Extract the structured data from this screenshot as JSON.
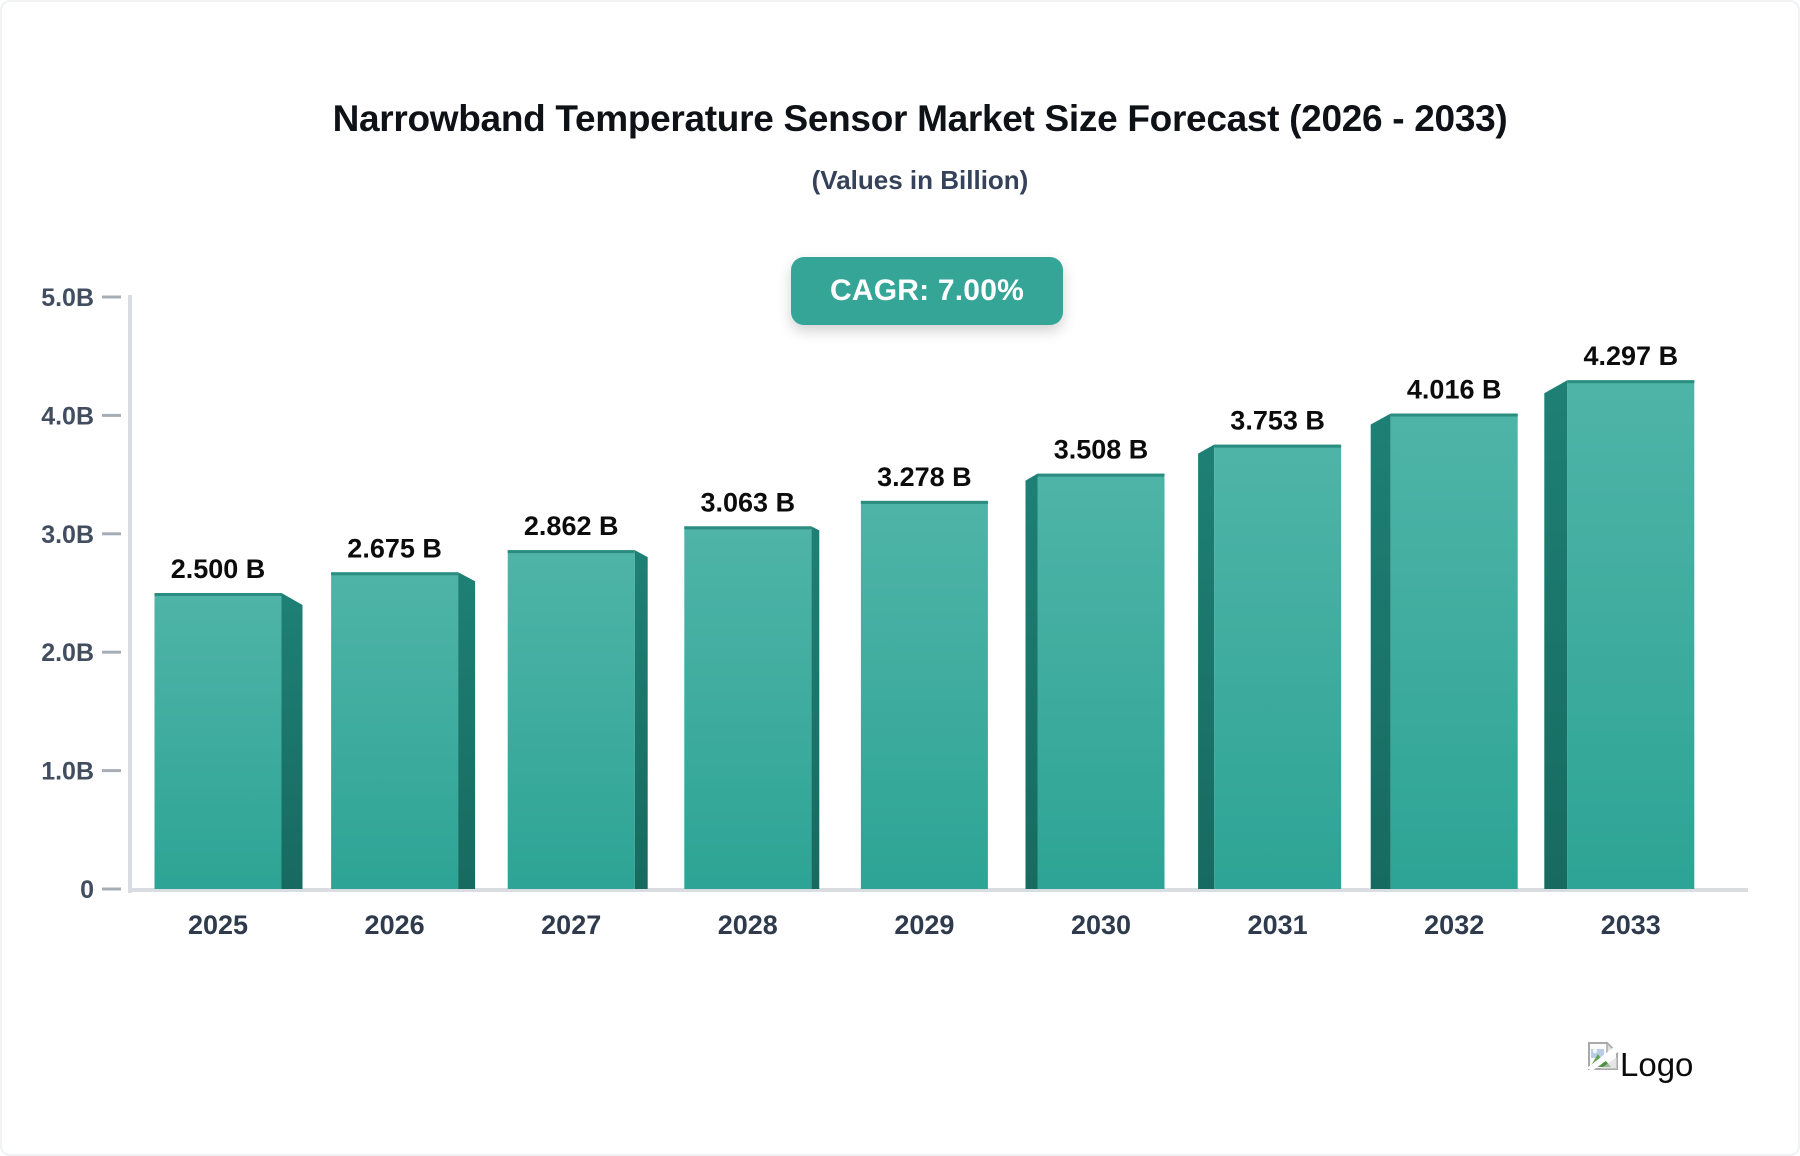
{
  "header": {
    "title": "Narrowband Temperature Sensor Market Size Forecast (2026 - 2033)",
    "subtitle": "(Values in Billion)",
    "cagr_badge": "CAGR: 7.00%"
  },
  "footer": {
    "logo_alt": "Logo"
  },
  "colors": {
    "accent_teal": "#35a597",
    "bar_gradient_top": "#4fb4a8",
    "bar_gradient_bottom": "#2da495",
    "bar_side_dark": "#1e8075",
    "bar_side_darker": "#176a60",
    "bar_top_edge": "#2b8c80",
    "axis_line": "#d9dce1",
    "tick_dash": "#a7adb7",
    "ytick_label": "#424e60",
    "xtick_label": "#2f3b4d",
    "value_label": "#0c0c0c"
  },
  "chart_data": {
    "type": "bar",
    "title": "Narrowband Temperature Sensor Market Size Forecast (2026 - 2033)",
    "subtitle": "(Values in Billion)",
    "annotation": "CAGR: 7.00%",
    "categories": [
      "2025",
      "2026",
      "2027",
      "2028",
      "2029",
      "2030",
      "2031",
      "2032",
      "2033"
    ],
    "values": [
      2.5,
      2.675,
      2.862,
      3.063,
      3.278,
      3.508,
      3.753,
      4.016,
      4.297
    ],
    "bar_labels": [
      "2.500 B",
      "2.675 B",
      "2.862 B",
      "3.063 B",
      "3.278 B",
      "3.508 B",
      "3.753 B",
      "4.016 B",
      "4.297 B"
    ],
    "unit": "Billion",
    "xlabel": "",
    "ylabel": "",
    "ylim": [
      0,
      5
    ],
    "ytick_values": [
      0,
      1,
      2,
      3,
      4,
      5
    ],
    "ytick_labels": [
      "0",
      "1.0B",
      "2.0B",
      "3.0B",
      "4.0B",
      "5.0B"
    ],
    "grid": false,
    "legend": null,
    "bar_style": "3d-perspective-teal"
  }
}
